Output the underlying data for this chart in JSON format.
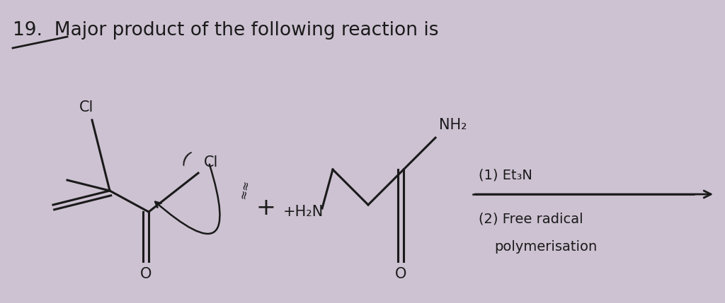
{
  "background_color": "#cdc2d2",
  "title_text": "19.  Major product of the following reaction is",
  "title_fontsize": 19,
  "title_color": "#1a1a1a",
  "figsize": [
    10.24,
    4.29
  ],
  "dpi": 100,
  "condition_line1": "(1) Et₃N",
  "condition_line2": "(2) Free radical",
  "condition_line3": "polymerisation"
}
